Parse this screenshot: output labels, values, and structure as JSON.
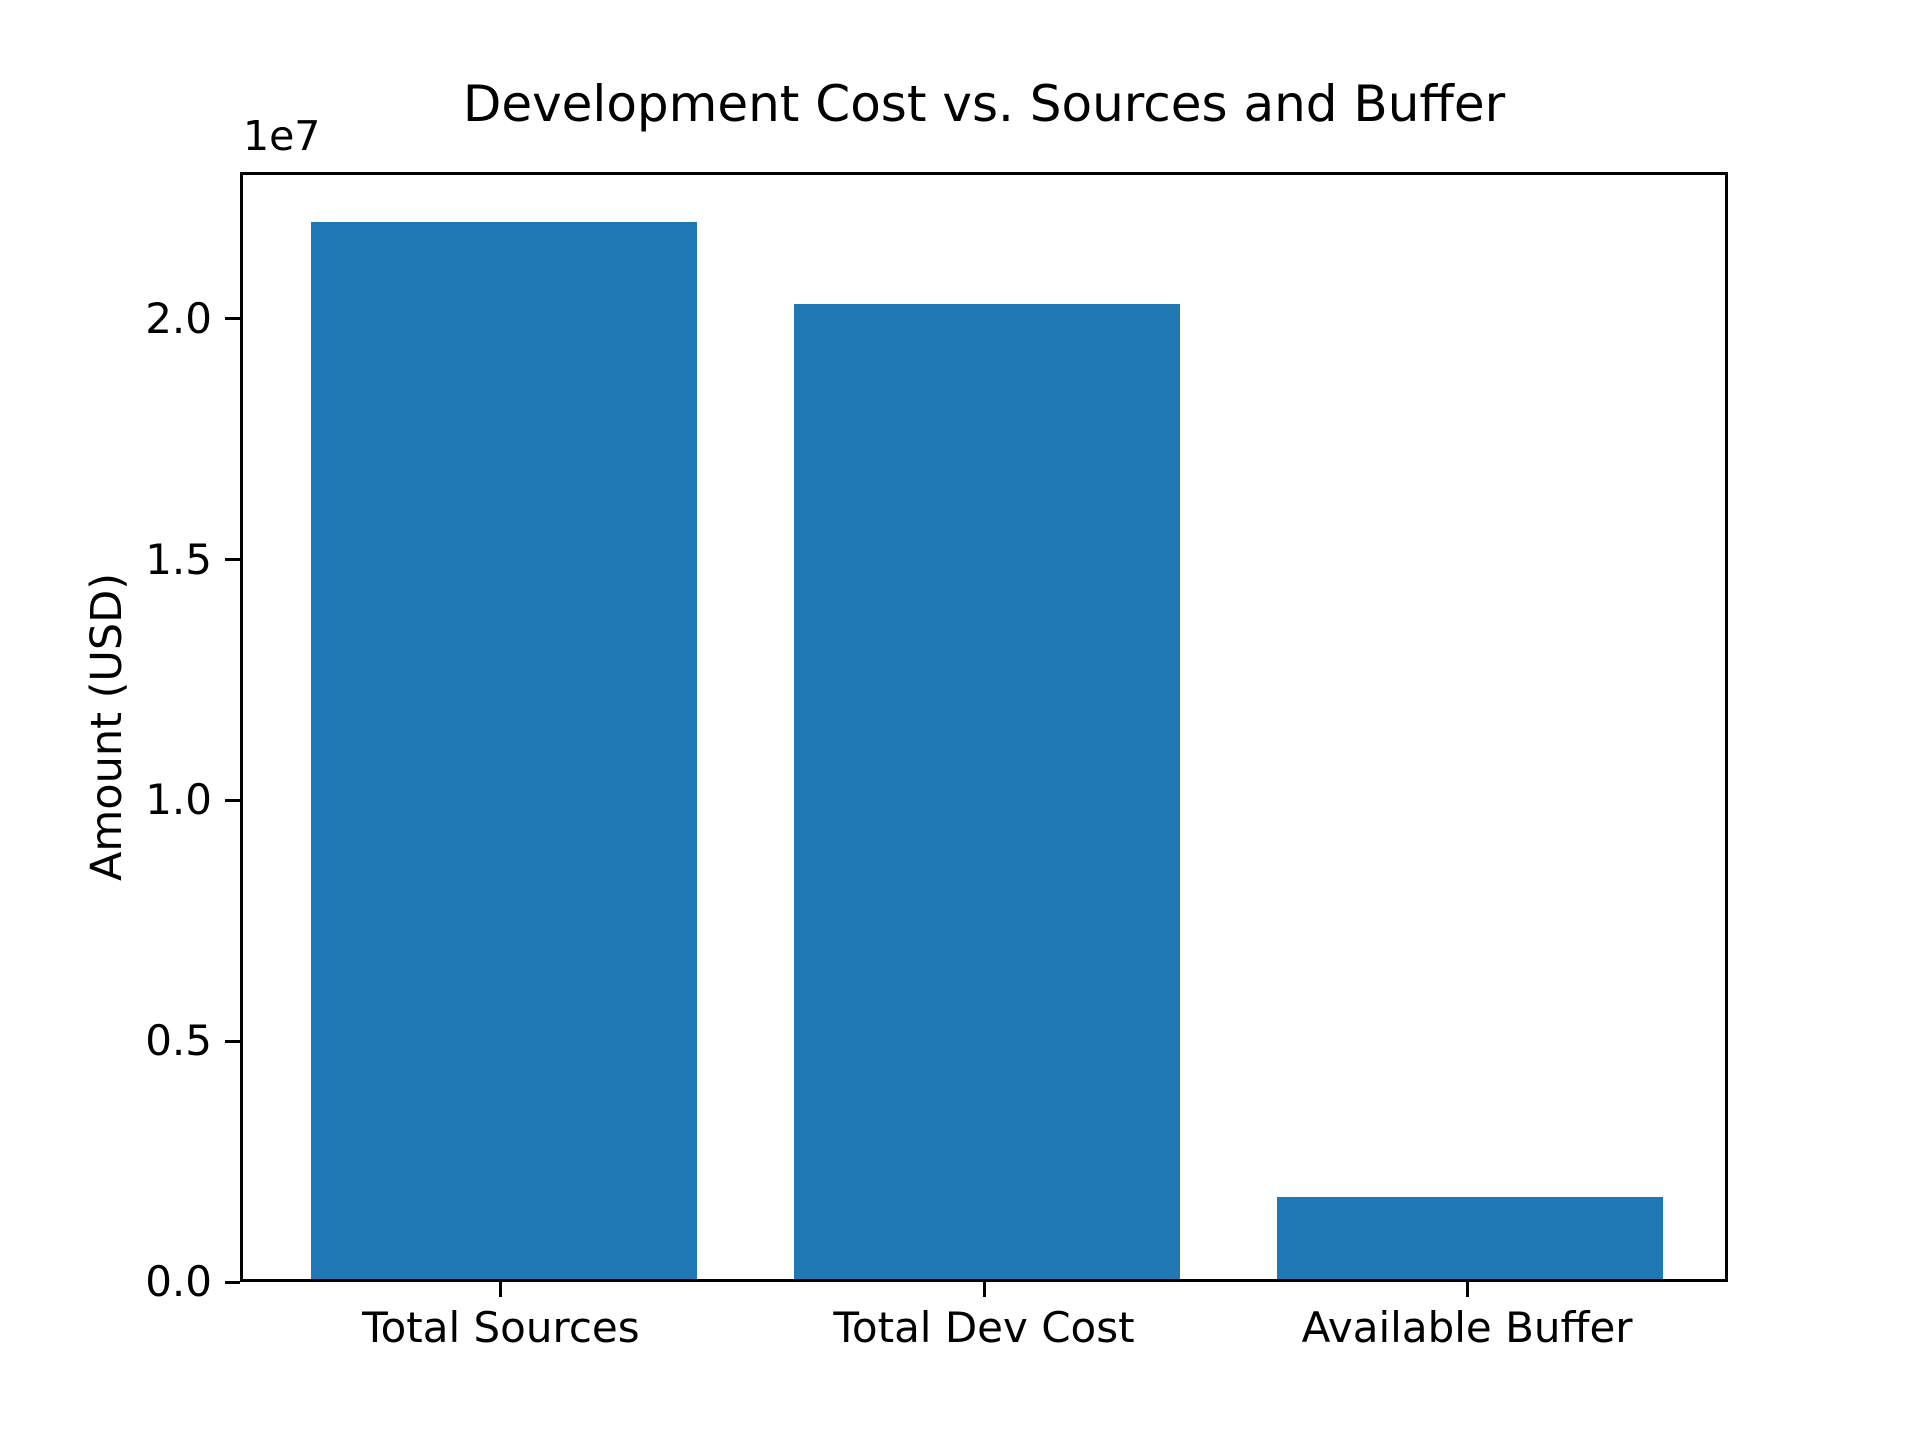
{
  "page": {
    "background_color": "#ffffff",
    "text_color": "#000000"
  },
  "chart_data": {
    "type": "bar",
    "title": "Development Cost vs. Sources and Buffer",
    "xlabel": "",
    "ylabel": "Amount (USD)",
    "offset_label": "1e7",
    "categories": [
      "Total Sources",
      "Total Dev Cost",
      "Available Buffer"
    ],
    "values": [
      21950000,
      20250000,
      1700000
    ],
    "bar_color": "#1f77b4",
    "bar_width_units": 0.8,
    "xlim": [
      -0.54,
      2.54
    ],
    "ylim": [
      0,
      23050000
    ],
    "yticks": [
      0,
      5000000,
      10000000,
      15000000,
      20000000
    ],
    "ytick_labels": [
      "0.0",
      "0.5",
      "1.0",
      "1.5",
      "2.0"
    ],
    "grid": false,
    "legend": null,
    "spine_color": "#000000"
  }
}
